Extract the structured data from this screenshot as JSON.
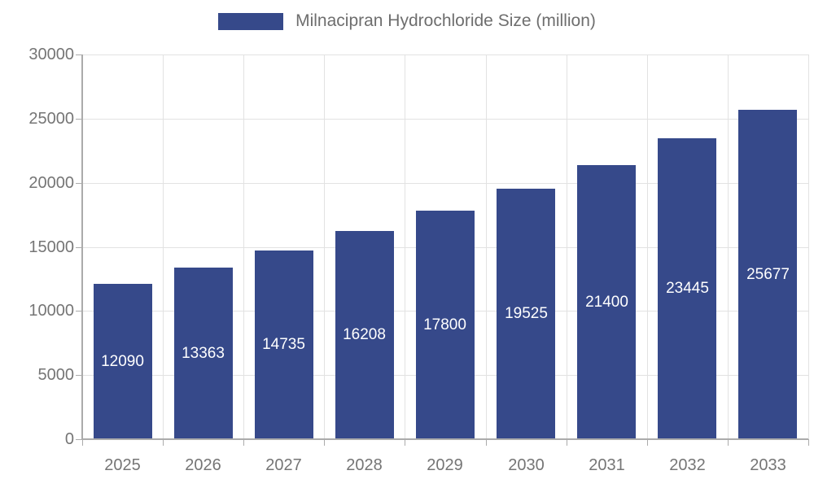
{
  "chart_data": {
    "type": "bar",
    "title": "Milnacipran Hydrochloride Size (million)",
    "series_name": "Milnacipran Hydrochloride Size (million)",
    "categories": [
      "2025",
      "2026",
      "2027",
      "2028",
      "2029",
      "2030",
      "2031",
      "2032",
      "2033"
    ],
    "values": [
      12090,
      13363,
      14735,
      16208,
      17800,
      19525,
      21400,
      23445,
      25677
    ],
    "value_labels": [
      "12090",
      "13363",
      "14735",
      "16208",
      "17800",
      "19525",
      "21400",
      "23445",
      "25677"
    ],
    "xlabel": "",
    "ylabel": "",
    "ylim": [
      0,
      30000
    ],
    "ytick_interval": 5000,
    "ytick_labels": [
      "0",
      "5000",
      "10000",
      "15000",
      "20000",
      "25000",
      "30000"
    ],
    "grid": true,
    "legend_position": "top"
  },
  "colors": {
    "bar": "#36498a",
    "value_label_text": "#ffffff",
    "axis_line": "#ababab",
    "grid_line": "#e2e2e2",
    "tick_text": "#757575",
    "title_text": "#6e6e6e",
    "background": "#ffffff"
  }
}
